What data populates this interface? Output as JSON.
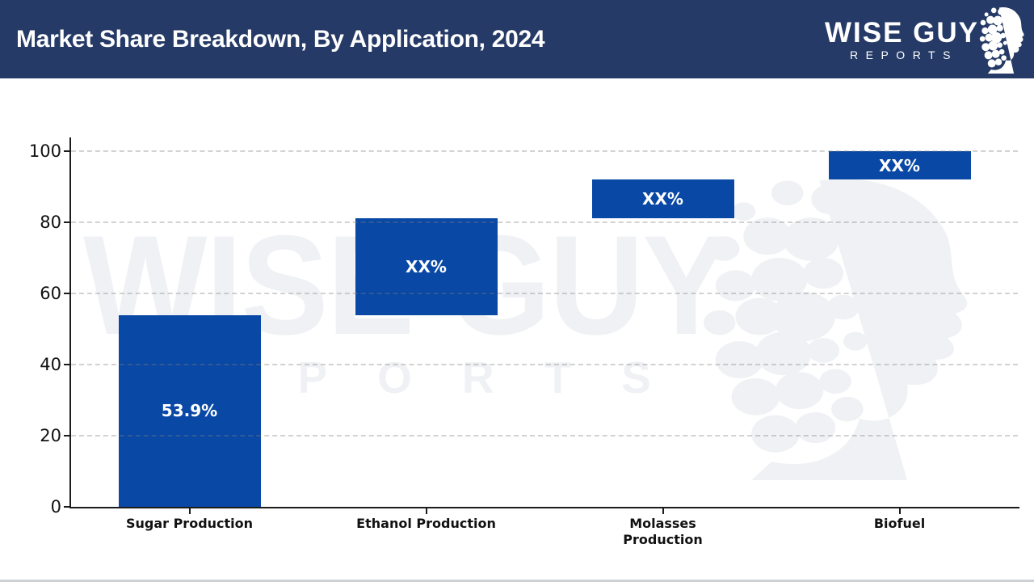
{
  "header": {
    "title": "Market Share Breakdown, By Application, 2024",
    "logo": {
      "line1": "WISE GUY",
      "line2": "REPORTS"
    }
  },
  "watermark": {
    "line1": "WISE GUY",
    "line2": "REPORTS"
  },
  "colors": {
    "header_bg": "#253a66",
    "title_text": "#ffffff",
    "bar": "#0948a5",
    "bar_label": "#ffffff",
    "axis": "#1c1c1c",
    "grid": "#d9d9d9",
    "watermark": "#eff1f4",
    "tick_label": "#111111",
    "page_bg": "#ffffff",
    "bottom_border": "#cdd0d4"
  },
  "chart_data": {
    "type": "bar",
    "subtype": "floating-waterfall",
    "title": "Market Share Breakdown, By Application, 2024",
    "categories": [
      "Sugar Production",
      "Ethanol Production",
      "Molasses Production",
      "Biofuel"
    ],
    "tick_labels": [
      "Sugar Production",
      "Ethanol Production",
      "Molasses\nProduction",
      "Biofuel"
    ],
    "series": [
      {
        "name": "Market share (%)",
        "segments": [
          {
            "category": "Sugar Production",
            "start": 0,
            "end": 53.9,
            "label": "53.9%"
          },
          {
            "category": "Ethanol Production",
            "start": 53.9,
            "end": 81.1,
            "label": "XX%"
          },
          {
            "category": "Molasses Production",
            "start": 81.1,
            "end": 92.0,
            "label": "XX%"
          },
          {
            "category": "Biofuel",
            "start": 92.0,
            "end": 100.0,
            "label": "XX%"
          }
        ]
      }
    ],
    "xlabel": "",
    "ylabel": "",
    "ylim": [
      0,
      104
    ],
    "yticks": [
      0,
      20,
      40,
      60,
      80,
      100
    ],
    "grid": "horizontal-dashed",
    "legend": "none"
  }
}
